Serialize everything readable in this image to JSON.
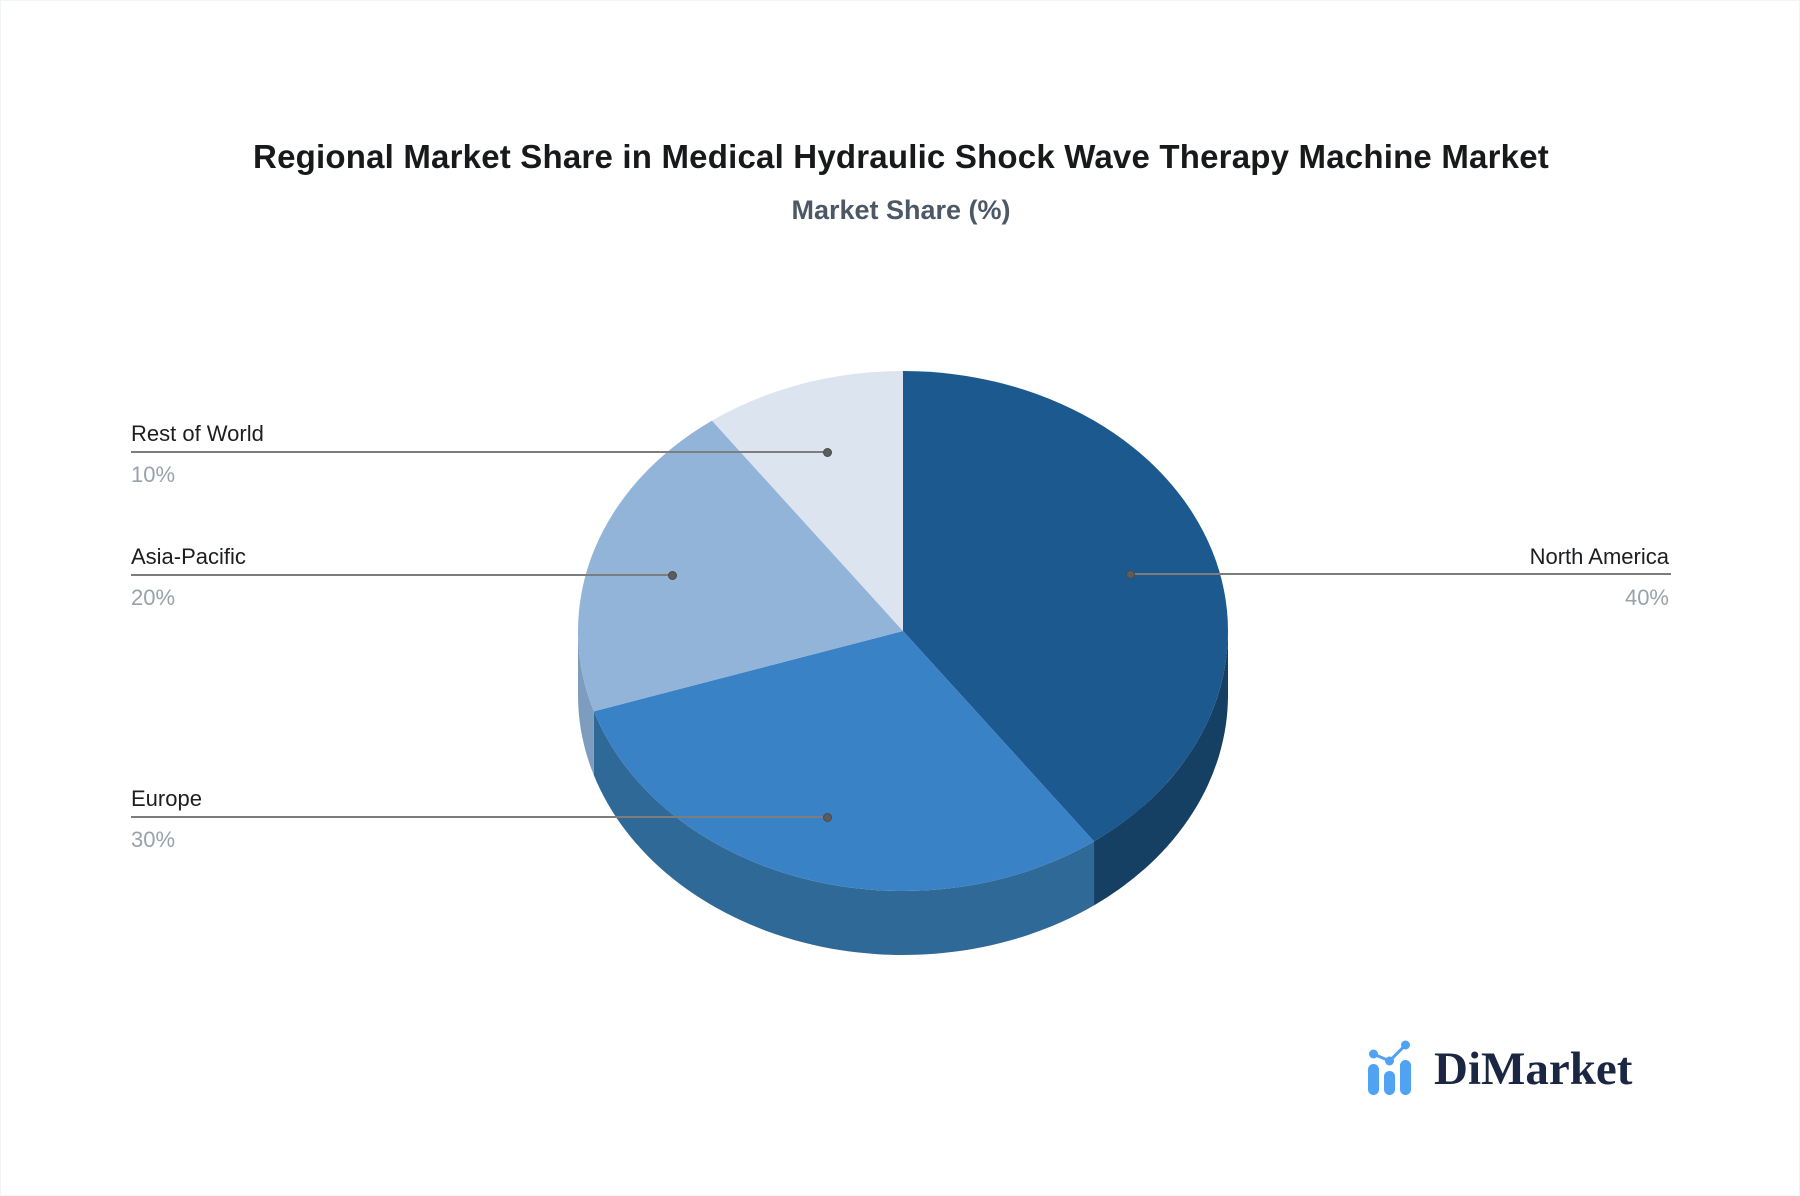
{
  "title": "Regional Market Share in Medical Hydraulic Shock Wave Therapy Machine Market",
  "subtitle": "Market Share (%)",
  "brand": {
    "name": "DiMarket",
    "icon_color": "#4FA3F2",
    "text_color": "#1b2742"
  },
  "chart_data": {
    "type": "pie",
    "style": "3d",
    "title": "Regional Market Share in Medical Hydraulic Shock Wave Therapy Machine Market",
    "subtitle": "Market Share (%)",
    "unit": "%",
    "start_angle_deg": 0,
    "direction": "clockwise",
    "legend_position": "leader-line callouts",
    "slices": [
      {
        "label": "North America",
        "value": 40,
        "value_label": "40%",
        "color": "#1B598E",
        "side_color": "#153F63"
      },
      {
        "label": "Europe",
        "value": 30,
        "value_label": "30%",
        "color": "#3A82C6",
        "side_color": "#2F6998"
      },
      {
        "label": "Asia-Pacific",
        "value": 20,
        "value_label": "20%",
        "color": "#92B4D9",
        "side_color": "#7E9DBE"
      },
      {
        "label": "Rest of World",
        "value": 10,
        "value_label": "10%",
        "color": "#DCE4EF",
        "side_color": "#B9C6D8"
      }
    ]
  },
  "leader_line_color": "#7d7d7d",
  "leader_dot_color": "#5c5c5c"
}
